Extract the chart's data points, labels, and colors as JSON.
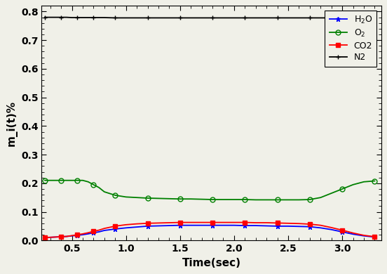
{
  "title": "",
  "xlabel": "Time(sec)",
  "ylabel": "m_i(t)%",
  "xlim": [
    0.22,
    3.36
  ],
  "ylim": [
    0.0,
    0.82
  ],
  "yticks": [
    0.0,
    0.1,
    0.2,
    0.3,
    0.4,
    0.5,
    0.6,
    0.7,
    0.8
  ],
  "xticks": [
    0.5,
    1.0,
    1.5,
    2.0,
    2.5,
    3.0
  ],
  "legend_labels": [
    "H$_2$O",
    "O$_2$",
    "CO2",
    "N2"
  ],
  "line_colors": [
    "blue",
    "green",
    "red",
    "black"
  ],
  "line_markers": [
    "*",
    "o",
    "s",
    "+"
  ],
  "time": [
    0.25,
    0.3,
    0.35,
    0.4,
    0.45,
    0.5,
    0.55,
    0.6,
    0.65,
    0.7,
    0.75,
    0.8,
    0.9,
    1.0,
    1.1,
    1.2,
    1.3,
    1.4,
    1.5,
    1.6,
    1.7,
    1.8,
    1.9,
    2.0,
    2.1,
    2.2,
    2.3,
    2.4,
    2.5,
    2.6,
    2.7,
    2.8,
    2.9,
    3.0,
    3.1,
    3.2,
    3.3
  ],
  "h2o": [
    0.01,
    0.011,
    0.012,
    0.013,
    0.014,
    0.016,
    0.018,
    0.02,
    0.023,
    0.027,
    0.03,
    0.035,
    0.04,
    0.044,
    0.047,
    0.05,
    0.051,
    0.052,
    0.053,
    0.053,
    0.053,
    0.053,
    0.053,
    0.053,
    0.052,
    0.052,
    0.051,
    0.05,
    0.05,
    0.049,
    0.048,
    0.044,
    0.038,
    0.03,
    0.022,
    0.016,
    0.012
  ],
  "o2": [
    0.21,
    0.21,
    0.21,
    0.21,
    0.21,
    0.21,
    0.21,
    0.21,
    0.205,
    0.195,
    0.185,
    0.17,
    0.158,
    0.152,
    0.15,
    0.148,
    0.147,
    0.146,
    0.145,
    0.145,
    0.144,
    0.143,
    0.143,
    0.143,
    0.143,
    0.142,
    0.142,
    0.142,
    0.142,
    0.142,
    0.143,
    0.15,
    0.165,
    0.18,
    0.195,
    0.205,
    0.208
  ],
  "co2": [
    0.01,
    0.011,
    0.012,
    0.013,
    0.014,
    0.017,
    0.02,
    0.023,
    0.027,
    0.032,
    0.036,
    0.042,
    0.05,
    0.055,
    0.058,
    0.06,
    0.061,
    0.062,
    0.063,
    0.063,
    0.063,
    0.063,
    0.063,
    0.063,
    0.063,
    0.062,
    0.062,
    0.061,
    0.06,
    0.059,
    0.057,
    0.053,
    0.045,
    0.036,
    0.026,
    0.018,
    0.013
  ],
  "n2": [
    0.78,
    0.78,
    0.78,
    0.78,
    0.78,
    0.779,
    0.779,
    0.779,
    0.779,
    0.779,
    0.779,
    0.779,
    0.778,
    0.778,
    0.778,
    0.778,
    0.778,
    0.778,
    0.778,
    0.778,
    0.778,
    0.778,
    0.778,
    0.778,
    0.778,
    0.778,
    0.778,
    0.778,
    0.778,
    0.778,
    0.778,
    0.778,
    0.778,
    0.778,
    0.778,
    0.778,
    0.778
  ],
  "marker_every": 3,
  "linewidth": 1.3,
  "markersize": 5,
  "bg_color": "#f0f0e8",
  "fig_color": "#f0f0e8"
}
